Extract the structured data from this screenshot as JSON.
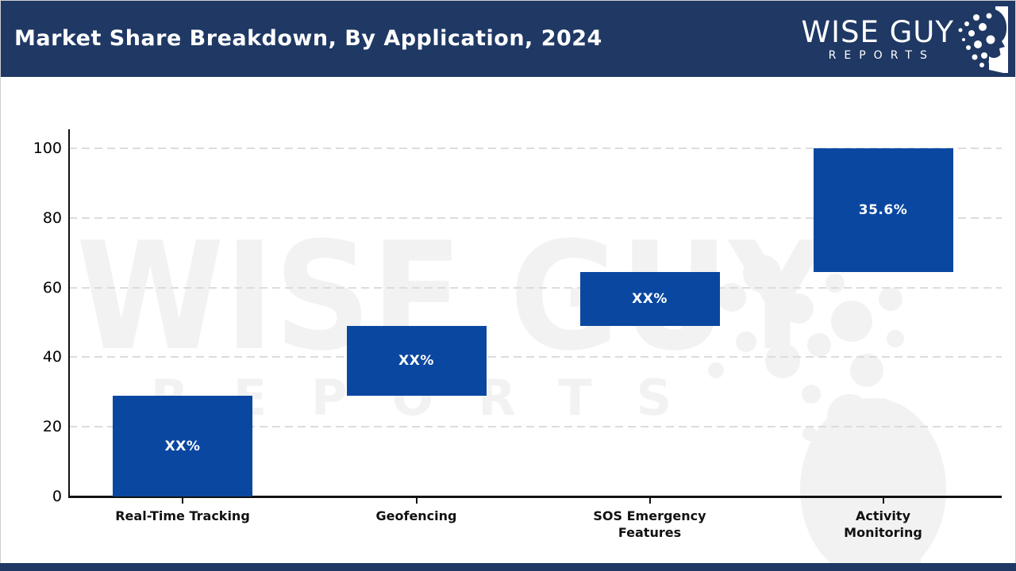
{
  "header": {
    "title": "Market Share Breakdown, By Application, 2024",
    "logo_line1": "WISE GUY",
    "logo_line2": "REPORTS",
    "bg_color": "#1f3864"
  },
  "watermark": {
    "line1": "WISE GUY",
    "line2": "REPORTS"
  },
  "chart_data": {
    "type": "bar",
    "subtype": "waterfall",
    "title": "Market Share Breakdown, By Application, 2024",
    "categories": [
      "Real-Time Tracking",
      "Geofencing",
      "SOS Emergency\nFeatures",
      "Activity\nMonitoring"
    ],
    "bar_starts": [
      0,
      28.9,
      49.0,
      64.4
    ],
    "values": [
      28.9,
      20.1,
      15.4,
      35.6
    ],
    "bar_labels": [
      "XX%",
      "XX%",
      "XX%",
      "35.6%"
    ],
    "xlabel": "",
    "ylabel": "",
    "ylim": [
      0,
      100
    ],
    "yticks": [
      0,
      20,
      40,
      60,
      80,
      100
    ],
    "grid": "horizontal-dashed",
    "legend": "none",
    "bar_color": "#0a47a1",
    "bar_label_color": "#ffffff"
  }
}
